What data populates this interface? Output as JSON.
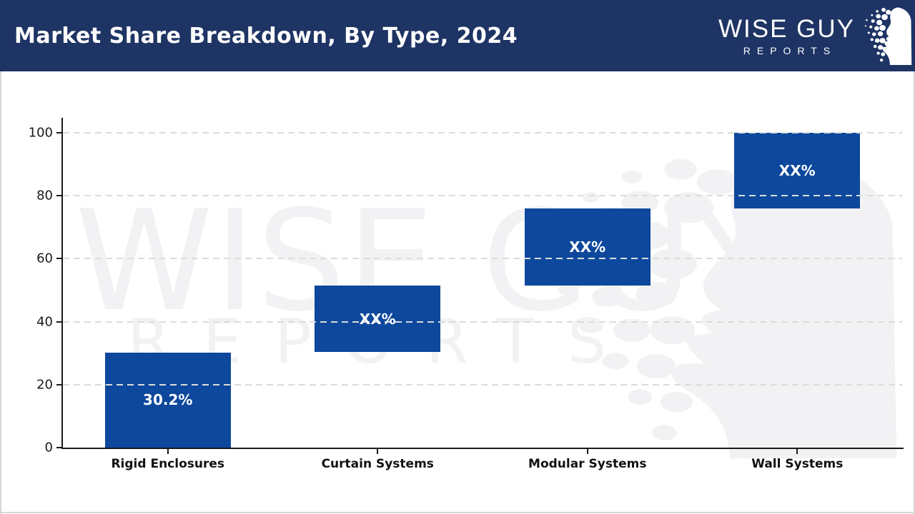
{
  "header": {
    "title": "Market Share Breakdown, By Type, 2024",
    "bg_color": "#1e3464",
    "logo": {
      "line1": "WISE GUY",
      "line2": "REPORTS"
    }
  },
  "watermark": {
    "line1": "WISE GUY",
    "line2": "REPORTS"
  },
  "chart_data": {
    "type": "bar",
    "subtype": "waterfall-floating-bars",
    "title": "Market Share Breakdown, By Type, 2024",
    "categories": [
      "Rigid Enclosures",
      "Curtain Systems",
      "Modular Systems",
      "Wall Systems"
    ],
    "segments": [
      {
        "category": "Rigid Enclosures",
        "start": 0,
        "end": 30.2,
        "label": "30.2%"
      },
      {
        "category": "Curtain Systems",
        "start": 30.2,
        "end": 51.4,
        "label": "XX%"
      },
      {
        "category": "Modular Systems",
        "start": 51.4,
        "end": 76.0,
        "label": "XX%"
      },
      {
        "category": "Wall Systems",
        "start": 76.0,
        "end": 100,
        "label": "XX%"
      }
    ],
    "xlabel": "",
    "ylabel": "",
    "ylim": [
      0,
      100
    ],
    "yticks": [
      0,
      20,
      40,
      60,
      80,
      100
    ],
    "grid": "horizontal-dashed",
    "legend": "none",
    "bar_color": "#0d489d",
    "bar_label_color": "#ffffff",
    "axis_color": "#1a1a1a"
  }
}
